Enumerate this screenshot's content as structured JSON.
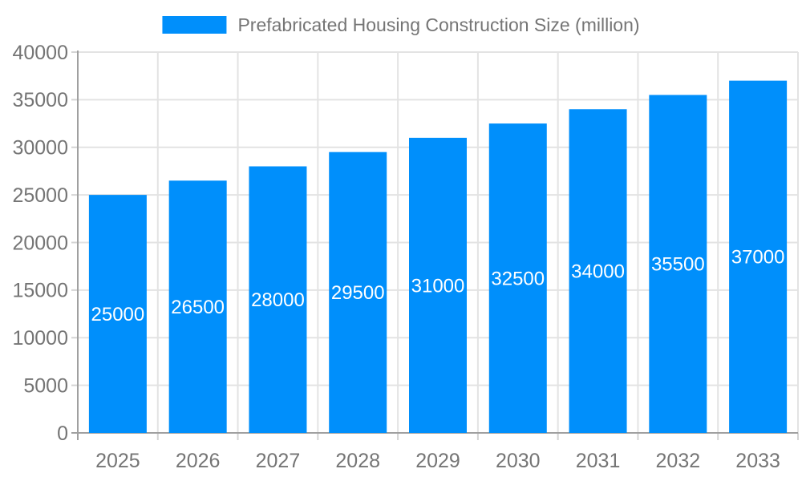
{
  "legend": {
    "label": "Prefabricated Housing Construction Size (million)"
  },
  "chart_data": {
    "type": "bar",
    "title": "Prefabricated Housing Construction Size (million)",
    "categories": [
      "2025",
      "2026",
      "2027",
      "2028",
      "2029",
      "2030",
      "2031",
      "2032",
      "2033"
    ],
    "series": [
      {
        "name": "Prefabricated Housing Construction Size (million)",
        "values": [
          25000,
          26500,
          28000,
          29500,
          31000,
          32500,
          34000,
          35500,
          37000
        ]
      }
    ],
    "xlabel": "",
    "ylabel": "",
    "ylim": [
      0,
      40000
    ],
    "ytick_step": 5000,
    "yticks": [
      0,
      5000,
      10000,
      15000,
      20000,
      25000,
      30000,
      35000,
      40000
    ],
    "grid": true,
    "legend_position": "top",
    "value_labels": "inside-center",
    "colors": {
      "bar": "#008FFB",
      "bar_label": "#FFFFFF",
      "axis_text": "#757575",
      "title_text": "#757575",
      "axis_line": "#A0A0A0",
      "tick_line": "#D4D4D4",
      "grid_line": "#E3E3E3",
      "background": "#FFFFFF"
    }
  }
}
